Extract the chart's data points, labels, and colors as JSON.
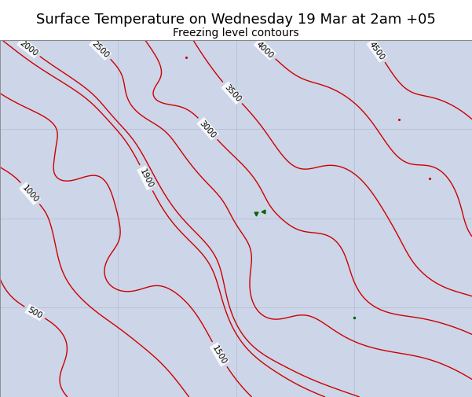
{
  "title": "Surface Temperature on Wednesday 19 Mar at 2am +05",
  "subtitle": "Freezing level contours",
  "bg_color": "#cdd5e8",
  "contour_color": "#cc0000",
  "title_fontsize": 13,
  "subtitle_fontsize": 10,
  "figsize": [
    6.01,
    5.06
  ],
  "dpi": 100,
  "contour_levels": [
    500,
    1000,
    1500,
    1900,
    2000,
    2500,
    3000,
    3500,
    4000,
    4500
  ],
  "contour_label_fontsize": 7.5,
  "grid_color": "#b0bbd0",
  "label_color": "black"
}
